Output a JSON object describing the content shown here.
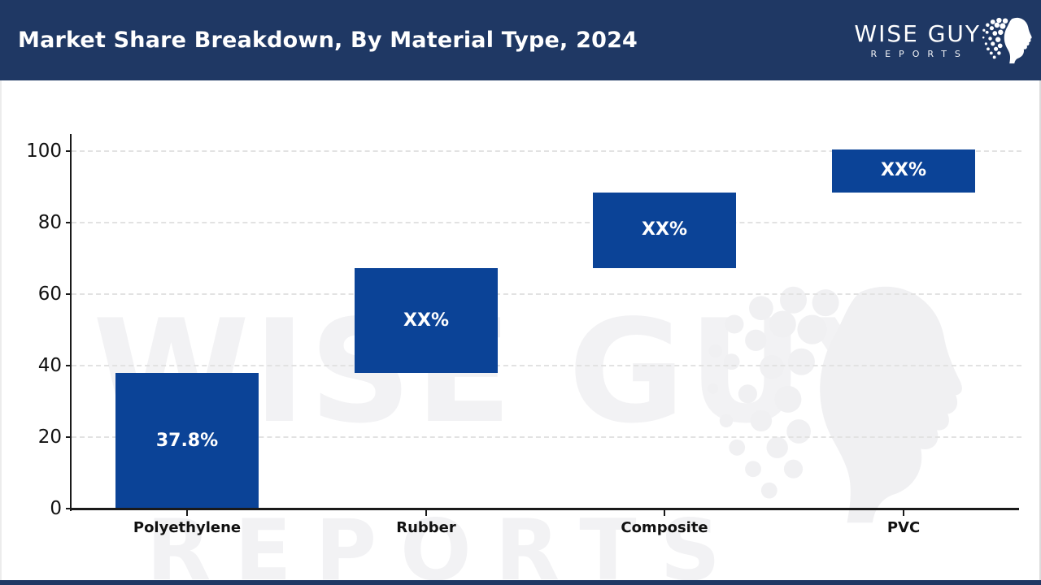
{
  "header": {
    "title": "Market Share Breakdown, By Material Type, 2024",
    "logo": {
      "wordmark": "WISE GUY",
      "reports": "REPORTS"
    }
  },
  "watermark": {
    "wordmark": "WISE GUY",
    "reports": "REPORTS"
  },
  "colors": {
    "header_bg": "#1f3864",
    "footer_bg": "#1f3864",
    "bar": "#0b4397",
    "bar_label": "#ffffff",
    "grid": "#e2e2e2",
    "axis": "#1a1a1a",
    "watermark": "#f2f2f4"
  },
  "chart_data": {
    "type": "bar",
    "subtype": "waterfall-style floating bars",
    "title": "Market Share Breakdown, By Material Type, 2024",
    "categories": [
      "Polyethylene",
      "Rubber",
      "Composite",
      "PVC"
    ],
    "series": [
      {
        "name": "Market share (%)",
        "segments": [
          {
            "category": "Polyethylene",
            "start": 0,
            "end": 37.8,
            "label": "37.8%"
          },
          {
            "category": "Rubber",
            "start": 37.8,
            "end": 67.2,
            "label": "XX%"
          },
          {
            "category": "Composite",
            "start": 67.2,
            "end": 88.4,
            "label": "XX%"
          },
          {
            "category": "PVC",
            "start": 88.4,
            "end": 100.4,
            "label": "XX%"
          }
        ]
      }
    ],
    "xlabel": "",
    "ylabel": "",
    "ylim": [
      0,
      100
    ],
    "yticks": [
      0,
      20,
      40,
      60,
      80,
      100
    ],
    "ytick_labels": [
      "0",
      "20",
      "40",
      "60",
      "80",
      "100"
    ],
    "grid": "horizontal dashed light gray",
    "legend": "none"
  }
}
